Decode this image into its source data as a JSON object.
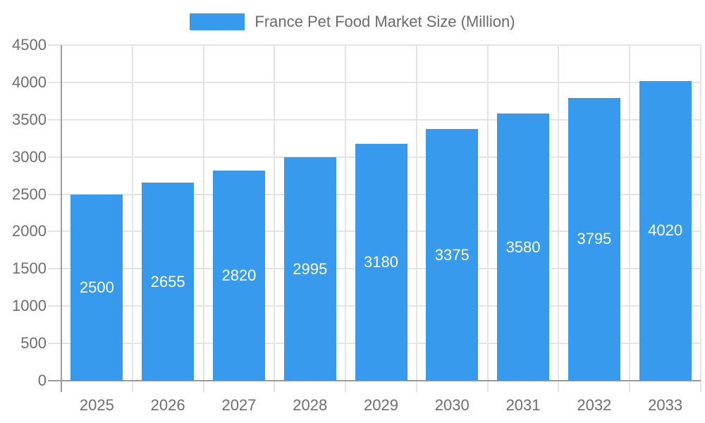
{
  "chart_data": {
    "type": "bar",
    "title": "France Pet Food Market Size (Million)",
    "categories": [
      "2025",
      "2026",
      "2027",
      "2028",
      "2029",
      "2030",
      "2031",
      "2032",
      "2033"
    ],
    "series": [
      {
        "name": "France Pet Food Market Size (Million)",
        "values": [
          2500,
          2655,
          2820,
          2995,
          3180,
          3375,
          3580,
          3795,
          4020
        ]
      }
    ],
    "data_labels": [
      "2500",
      "2655",
      "2820",
      "2995",
      "3180",
      "3375",
      "3580",
      "3795",
      "4020"
    ],
    "xlabel": "",
    "ylabel": "",
    "ylim": [
      0,
      4500
    ],
    "ytick_step": 500,
    "ytick_labels": [
      "0",
      "500",
      "1000",
      "1500",
      "2000",
      "2500",
      "3000",
      "3500",
      "4000",
      "4500"
    ],
    "grid": "horizontal and vertical gridlines on",
    "legend_position": "top-center",
    "colors": {
      "bar": "#389AEC",
      "bar_label_text": "#FFFFFF",
      "axis_tick_text": "#6E6E6E",
      "legend_text": "#6B6B6B",
      "grid_line": "#E4E4E4",
      "axis_line": "#9B9B9B",
      "background": "#FFFFFF"
    }
  }
}
